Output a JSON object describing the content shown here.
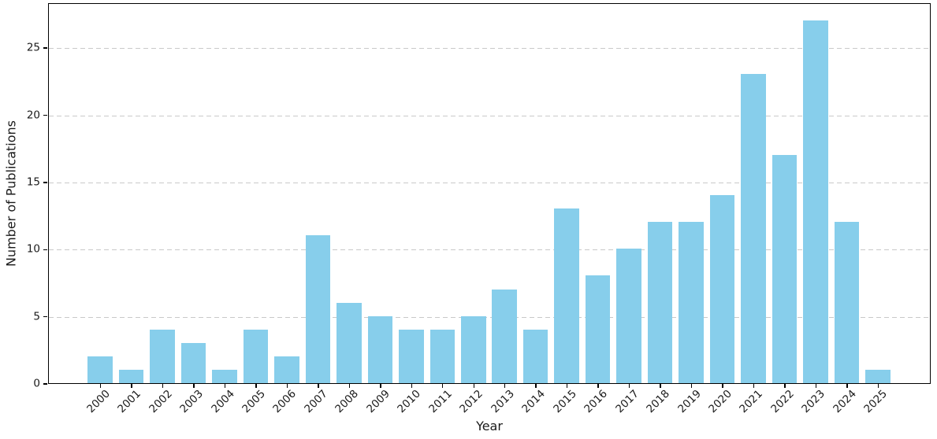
{
  "chart_data": {
    "type": "bar",
    "xlabel": "Year",
    "ylabel": "Number of Publications",
    "categories": [
      "2000",
      "2001",
      "2002",
      "2003",
      "2004",
      "2005",
      "2006",
      "2007",
      "2008",
      "2009",
      "2010",
      "2011",
      "2012",
      "2013",
      "2014",
      "2015",
      "2016",
      "2017",
      "2018",
      "2019",
      "2020",
      "2021",
      "2022",
      "2023",
      "2024",
      "2025"
    ],
    "values": [
      2,
      1,
      4,
      3,
      1,
      4,
      2,
      11,
      6,
      5,
      4,
      4,
      5,
      7,
      4,
      13,
      8,
      10,
      12,
      12,
      14,
      23,
      17,
      27,
      12,
      1
    ],
    "yticks": [
      0,
      5,
      10,
      15,
      20,
      25
    ],
    "ylim": [
      0,
      28.35
    ],
    "bar_color": "#87CEEB",
    "grid": "horizontal-dashed",
    "grid_color": "#c9c9c9",
    "legend": "none",
    "xtick_rotation": 45
  }
}
